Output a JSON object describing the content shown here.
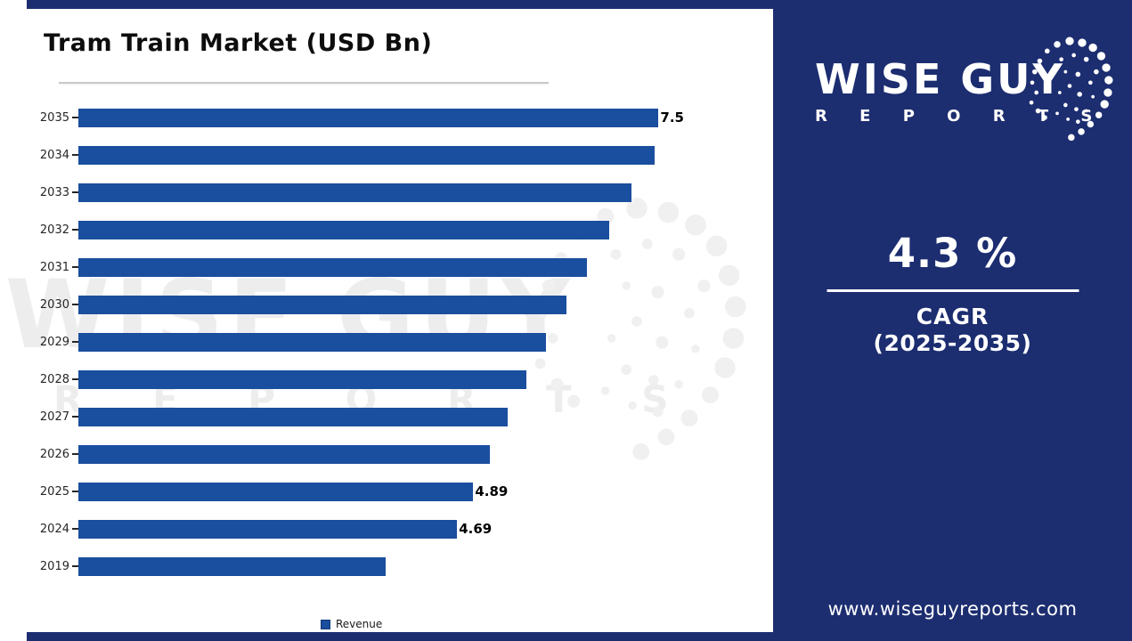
{
  "colors": {
    "panel_navy": "#1c2d70",
    "bar_blue": "#1a4e9e",
    "watermark_gray": "#ededed"
  },
  "chart_data": {
    "type": "bar",
    "orientation": "horizontal",
    "title": "Tram Train Market (USD Bn)",
    "categories": [
      "2035",
      "2034",
      "2033",
      "2032",
      "2031",
      "2030",
      "2029",
      "2028",
      "2027",
      "2026",
      "2025",
      "2024",
      "2019"
    ],
    "series": [
      {
        "name": "Revenue",
        "values": [
          7.5,
          7.14,
          6.85,
          6.57,
          6.3,
          6.04,
          5.79,
          5.55,
          5.32,
          5.1,
          4.89,
          4.69,
          3.8
        ]
      }
    ],
    "value_labels": [
      "7.5",
      "",
      "",
      "",
      "",
      "",
      "",
      "",
      "",
      "",
      "4.89",
      "4.69",
      ""
    ],
    "xlim": [
      0,
      7.5
    ],
    "grid": false,
    "legend": {
      "label": "Revenue",
      "position": "bottom"
    }
  },
  "watermark": {
    "line1": "WISE GUY",
    "line2": "R E P O R T S"
  },
  "side_panel": {
    "logo_line1": "WISE GUY",
    "logo_line2": "R E P O R T S",
    "cagr_value": "4.3 %",
    "cagr_label": "CAGR",
    "cagr_period": "(2025-2035)",
    "website": "www.wiseguyreports.com"
  }
}
